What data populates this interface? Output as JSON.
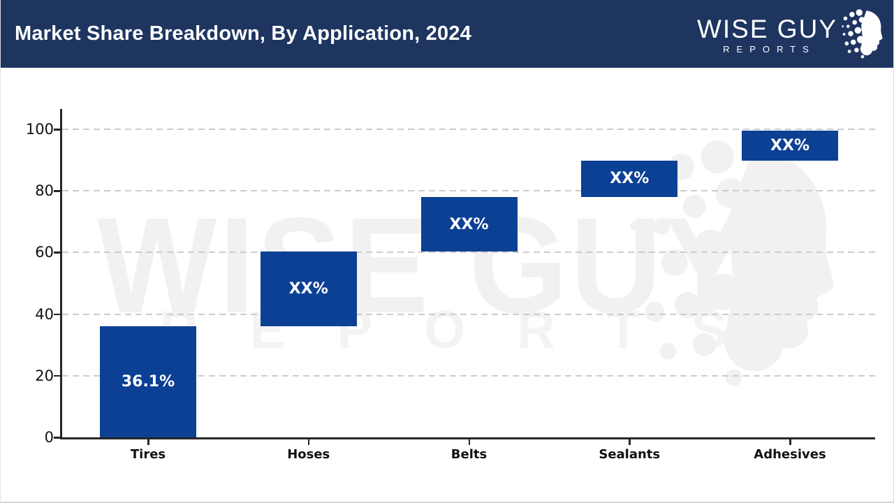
{
  "header": {
    "title": "Market Share Breakdown, By Application, 2024",
    "logo_line1": "WISE GUY",
    "logo_line2": "REPORTS",
    "bg_color": "#1e3560"
  },
  "watermark": {
    "line1": "WISE GUY",
    "line2": "REPORTS"
  },
  "chart_data": {
    "type": "bar",
    "variant": "waterfall",
    "title": "Market Share Breakdown, By Application, 2024",
    "categories": [
      "Tires",
      "Hoses",
      "Belts",
      "Sealants",
      "Adhesives"
    ],
    "bars": [
      {
        "category": "Tires",
        "start": 0,
        "end": 36.1,
        "label": "36.1%"
      },
      {
        "category": "Hoses",
        "start": 36.1,
        "end": 60.3,
        "label": "XX%"
      },
      {
        "category": "Belts",
        "start": 60.3,
        "end": 78.0,
        "label": "XX%"
      },
      {
        "category": "Sealants",
        "start": 78.0,
        "end": 89.8,
        "label": "XX%"
      },
      {
        "category": "Adhesives",
        "start": 89.8,
        "end": 99.6,
        "label": "XX%"
      }
    ],
    "y_ticks": [
      0,
      20,
      40,
      60,
      80,
      100
    ],
    "ylim": [
      0,
      106
    ],
    "xlabel": "",
    "ylabel": "",
    "grid": "horizontal-dashed",
    "legend": "none",
    "bar_color": "#0c4094",
    "bar_label_color": "#ffffff",
    "axis_color": "#262626",
    "grid_color": "#cccccc"
  }
}
